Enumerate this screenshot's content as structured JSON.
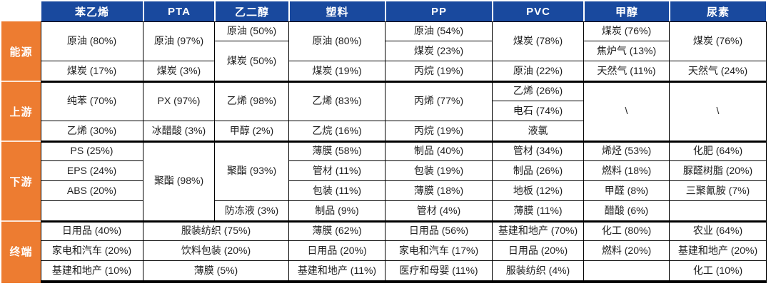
{
  "colors": {
    "header_bg": "#19499E",
    "header_text": "#FFFFFF",
    "row_group_bg": "#ED7C31",
    "row_group_text": "#FFFFFF",
    "cell_text": "#212121",
    "grid_line": "#000000"
  },
  "chart_data": {
    "type": "table",
    "title": "",
    "corner_label": "",
    "columns": [
      "苯乙烯",
      "PTA",
      "乙二醇",
      "塑料",
      "PP",
      "PVC",
      "甲醇",
      "尿素"
    ],
    "row_groups": [
      {
        "label": "能源",
        "sub_rows": 3,
        "cells": [
          {
            "col": 1,
            "row": 1,
            "rowspan": 2,
            "text": "原油 (80%)"
          },
          {
            "col": 1,
            "row": 3,
            "text": "煤炭 (17%)"
          },
          {
            "col": 2,
            "row": 1,
            "rowspan": 2,
            "text": "原油 (97%)"
          },
          {
            "col": 2,
            "row": 3,
            "text": "煤炭 (3%)"
          },
          {
            "col": 3,
            "row": 1,
            "text": "原油 (50%)"
          },
          {
            "col": 3,
            "row": 2,
            "rowspan": 2,
            "text": "煤炭 (50%)"
          },
          {
            "col": 4,
            "row": 1,
            "rowspan": 2,
            "text": "原油 (80%)"
          },
          {
            "col": 4,
            "row": 3,
            "text": "煤炭 (19%)"
          },
          {
            "col": 5,
            "row": 1,
            "text": "原油 (54%)"
          },
          {
            "col": 5,
            "row": 2,
            "text": "煤炭 (23%)"
          },
          {
            "col": 5,
            "row": 3,
            "text": "丙烷 (19%)"
          },
          {
            "col": 6,
            "row": 1,
            "rowspan": 2,
            "text": "煤炭 (78%)"
          },
          {
            "col": 6,
            "row": 3,
            "text": "原油 (22%)"
          },
          {
            "col": 7,
            "row": 1,
            "text": "煤炭 (76%)"
          },
          {
            "col": 7,
            "row": 2,
            "text": "焦炉气 (13%)"
          },
          {
            "col": 7,
            "row": 3,
            "text": "天然气 (11%)"
          },
          {
            "col": 8,
            "row": 1,
            "rowspan": 2,
            "text": "煤炭 (76%)"
          },
          {
            "col": 8,
            "row": 3,
            "text": "天然气 (24%)"
          }
        ]
      },
      {
        "label": "上游",
        "sub_rows": 3,
        "cells": [
          {
            "col": 1,
            "row": 1,
            "rowspan": 2,
            "text": "纯苯 (70%)"
          },
          {
            "col": 1,
            "row": 3,
            "text": "乙烯 (30%)"
          },
          {
            "col": 2,
            "row": 1,
            "rowspan": 2,
            "text": "PX (97%)"
          },
          {
            "col": 2,
            "row": 3,
            "text": "冰醋酸 (3%)"
          },
          {
            "col": 3,
            "row": 1,
            "rowspan": 2,
            "text": "乙烯 (98%)"
          },
          {
            "col": 3,
            "row": 3,
            "text": "甲醇 (2%)"
          },
          {
            "col": 4,
            "row": 1,
            "rowspan": 2,
            "text": "乙烯 (83%)"
          },
          {
            "col": 4,
            "row": 3,
            "text": "乙烷 (16%)"
          },
          {
            "col": 5,
            "row": 1,
            "rowspan": 2,
            "text": "丙烯 (77%)"
          },
          {
            "col": 5,
            "row": 3,
            "text": "丙烷 (19%)"
          },
          {
            "col": 6,
            "row": 1,
            "text": "乙烯 (26%)"
          },
          {
            "col": 6,
            "row": 2,
            "text": "电石 (74%)"
          },
          {
            "col": 6,
            "row": 3,
            "text": "液氯"
          },
          {
            "col": 7,
            "row": 1,
            "rowspan": 3,
            "text": "\\"
          },
          {
            "col": 8,
            "row": 1,
            "rowspan": 3,
            "text": "\\"
          }
        ]
      },
      {
        "label": "下游",
        "sub_rows": 4,
        "cells": [
          {
            "col": 1,
            "row": 1,
            "text": "PS (25%)"
          },
          {
            "col": 1,
            "row": 2,
            "text": "EPS (24%)"
          },
          {
            "col": 1,
            "row": 3,
            "text": "ABS (20%)"
          },
          {
            "col": 1,
            "row": 4,
            "text": ""
          },
          {
            "col": 2,
            "row": 1,
            "rowspan": 4,
            "text": "聚酯 (98%)"
          },
          {
            "col": 3,
            "row": 1,
            "rowspan": 3,
            "text": "聚酯 (93%)"
          },
          {
            "col": 3,
            "row": 4,
            "text": "防冻液 (3%)"
          },
          {
            "col": 4,
            "row": 1,
            "text": "薄膜 (58%)"
          },
          {
            "col": 4,
            "row": 2,
            "text": "管材 (11%)"
          },
          {
            "col": 4,
            "row": 3,
            "text": "包装 (11%)"
          },
          {
            "col": 4,
            "row": 4,
            "text": "制品 (9%)"
          },
          {
            "col": 5,
            "row": 1,
            "text": "制品 (40%)"
          },
          {
            "col": 5,
            "row": 2,
            "text": "包装 (19%)"
          },
          {
            "col": 5,
            "row": 3,
            "text": "薄膜 (18%)"
          },
          {
            "col": 5,
            "row": 4,
            "text": "管材 (4%)"
          },
          {
            "col": 6,
            "row": 1,
            "text": "管材 (34%)"
          },
          {
            "col": 6,
            "row": 2,
            "text": "制品 (26%)"
          },
          {
            "col": 6,
            "row": 3,
            "text": "地板 (12%)"
          },
          {
            "col": 6,
            "row": 4,
            "text": "薄膜 (11%)"
          },
          {
            "col": 7,
            "row": 1,
            "text": "烯烃 (53%)"
          },
          {
            "col": 7,
            "row": 2,
            "text": "燃料 (18%)"
          },
          {
            "col": 7,
            "row": 3,
            "text": "甲醛 (8%)"
          },
          {
            "col": 7,
            "row": 4,
            "text": "醋酸 (6%)"
          },
          {
            "col": 8,
            "row": 1,
            "text": "化肥 (64%)"
          },
          {
            "col": 8,
            "row": 2,
            "text": "脲醛树脂 (20%)"
          },
          {
            "col": 8,
            "row": 3,
            "text": "三聚氰胺 (7%)"
          },
          {
            "col": 8,
            "row": 4,
            "text": ""
          }
        ]
      },
      {
        "label": "终端",
        "sub_rows": 3,
        "cells": [
          {
            "col": 1,
            "row": 1,
            "text": "日用品 (40%)"
          },
          {
            "col": 1,
            "row": 2,
            "text": "家电和汽车 (20%)"
          },
          {
            "col": 1,
            "row": 3,
            "text": "基建和地产 (10%)"
          },
          {
            "col": 2,
            "row": 1,
            "colspan": 2,
            "text": "服装纺织 (75%)"
          },
          {
            "col": 2,
            "row": 2,
            "colspan": 2,
            "text": "饮料包装 (20%)"
          },
          {
            "col": 2,
            "row": 3,
            "colspan": 2,
            "text": "薄膜 (5%)"
          },
          {
            "col": 4,
            "row": 1,
            "text": "薄膜 (62%)"
          },
          {
            "col": 4,
            "row": 2,
            "text": "日用品 (20%)"
          },
          {
            "col": 4,
            "row": 3,
            "text": "基建和地产 (11%)"
          },
          {
            "col": 5,
            "row": 1,
            "text": "日用品 (56%)"
          },
          {
            "col": 5,
            "row": 2,
            "text": "家电和汽车 (17%)"
          },
          {
            "col": 5,
            "row": 3,
            "text": "医疗和母婴 (11%)"
          },
          {
            "col": 6,
            "row": 1,
            "text": "基建和地产 (70%)"
          },
          {
            "col": 6,
            "row": 2,
            "text": "日用品 (20%)"
          },
          {
            "col": 6,
            "row": 3,
            "text": "服装纺织 (4%)"
          },
          {
            "col": 7,
            "row": 1,
            "text": "化工 (80%)"
          },
          {
            "col": 7,
            "row": 2,
            "text": "燃料 (20%)"
          },
          {
            "col": 7,
            "row": 3,
            "text": ""
          },
          {
            "col": 8,
            "row": 1,
            "text": "农业 (64%)"
          },
          {
            "col": 8,
            "row": 2,
            "text": "基建和地产 (20%)"
          },
          {
            "col": 8,
            "row": 3,
            "text": "化工 (10%)"
          }
        ]
      }
    ]
  }
}
